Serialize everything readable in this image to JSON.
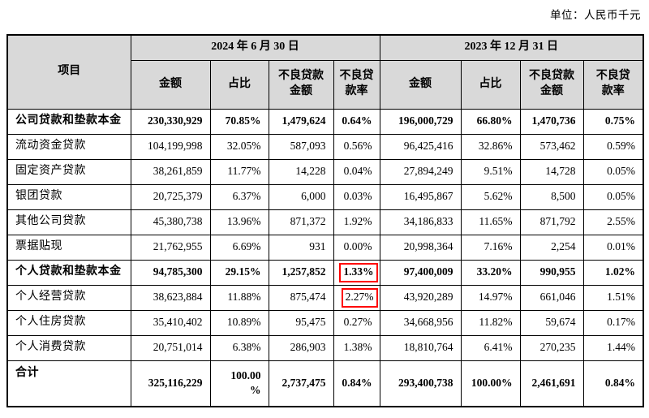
{
  "unit_label": "单位：人民币千元",
  "table": {
    "item_header": "项目",
    "col_groups": [
      {
        "label": "2024 年 6 月 30 日",
        "cols": [
          "金额",
          "占比",
          "不良贷款\n金额",
          "不良贷\n款率"
        ]
      },
      {
        "label": "2023 年 12 月 31 日",
        "cols": [
          "金额",
          "占比",
          "不良贷款\n金额",
          "不良贷\n款率"
        ]
      }
    ],
    "rows": [
      {
        "label": "公司贷款和垫款本金",
        "bold": true,
        "cells": [
          "230,330,929",
          "70.85%",
          "1,479,624",
          "0.64%",
          "196,000,729",
          "66.80%",
          "1,470,736",
          "0.75%"
        ]
      },
      {
        "label": "流动资金贷款",
        "cells": [
          "104,199,998",
          "32.05%",
          "587,093",
          "0.56%",
          "96,425,416",
          "32.86%",
          "573,462",
          "0.59%"
        ]
      },
      {
        "label": "固定资产贷款",
        "cells": [
          "38,261,859",
          "11.77%",
          "14,228",
          "0.04%",
          "27,894,249",
          "9.51%",
          "14,728",
          "0.05%"
        ]
      },
      {
        "label": "银团贷款",
        "cells": [
          "20,725,379",
          "6.37%",
          "6,000",
          "0.03%",
          "16,495,867",
          "5.62%",
          "8,500",
          "0.05%"
        ]
      },
      {
        "label": "其他公司贷款",
        "cells": [
          "45,380,738",
          "13.96%",
          "871,372",
          "1.92%",
          "34,186,833",
          "11.65%",
          "871,792",
          "2.55%"
        ]
      },
      {
        "label": "票据贴现",
        "cells": [
          "21,762,955",
          "6.69%",
          "931",
          "0.00%",
          "20,998,364",
          "7.16%",
          "2,254",
          "0.01%"
        ]
      },
      {
        "label": "个人贷款和垫款本金",
        "bold": true,
        "highlight": [
          3
        ],
        "cells": [
          "94,785,300",
          "29.15%",
          "1,257,852",
          "1.33%",
          "97,400,009",
          "33.20%",
          "990,955",
          "1.02%"
        ]
      },
      {
        "label": "个人经营贷款",
        "highlight": [
          3
        ],
        "cells": [
          "38,623,884",
          "11.88%",
          "875,474",
          "2.27%",
          "43,920,289",
          "14.97%",
          "661,046",
          "1.51%"
        ]
      },
      {
        "label": "个人住房贷款",
        "cells": [
          "35,410,402",
          "10.89%",
          "95,475",
          "0.27%",
          "34,668,956",
          "11.82%",
          "59,674",
          "0.17%"
        ]
      },
      {
        "label": "个人消费贷款",
        "cells": [
          "20,751,014",
          "6.38%",
          "286,903",
          "1.38%",
          "18,810,764",
          "6.41%",
          "270,235",
          "1.44%"
        ]
      },
      {
        "label": "合计",
        "bold": true,
        "total": true,
        "cells": [
          "325,116,229",
          "100.00\n%",
          "2,737,475",
          "0.84%",
          "293,400,738",
          "100.00%",
          "2,461,691",
          "0.84%"
        ]
      }
    ]
  },
  "colors": {
    "highlight_border": "#ff0000",
    "header_bg": "#d9d9d9",
    "border": "#000000",
    "text": "#000000"
  }
}
